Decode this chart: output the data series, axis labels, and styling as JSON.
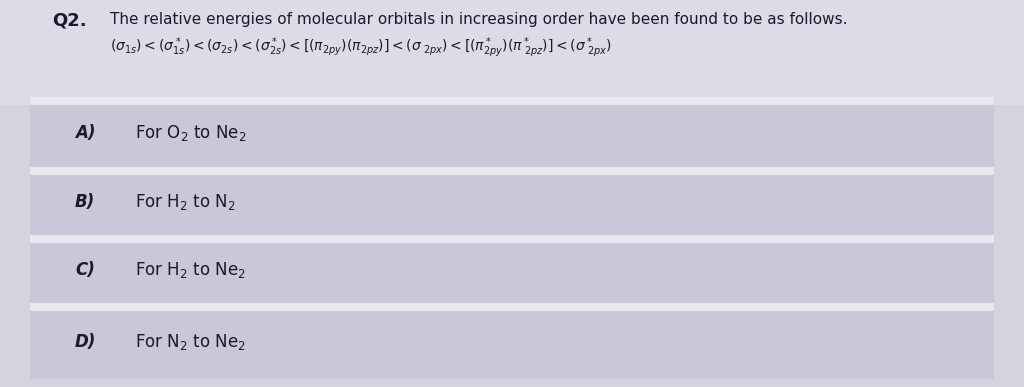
{
  "bg_color": "#d4d4e0",
  "panel_color": "#c8c8d8",
  "separator_color": "#e8e8f0",
  "text_color": "#1a1a2e",
  "q_label": "Q2.",
  "question_line1": "The relative energies of molecular orbitals in increasing order have been found to be as follows.",
  "options": [
    {
      "label": "A)",
      "text_a": "For O",
      "text_b": "2",
      "text_c": " to Ne",
      "text_d": "2"
    },
    {
      "label": "B)",
      "text_a": "For H",
      "text_b": "2",
      "text_c": " to N",
      "text_d": "2"
    },
    {
      "label": "C)",
      "text_a": "For H",
      "text_b": "2",
      "text_c": " to Ne",
      "text_d": "2"
    },
    {
      "label": "D)",
      "text_a": "For N",
      "text_b": "2",
      "text_c": " to Ne",
      "text_d": "2"
    }
  ],
  "figsize": [
    10.24,
    3.87
  ],
  "dpi": 100
}
